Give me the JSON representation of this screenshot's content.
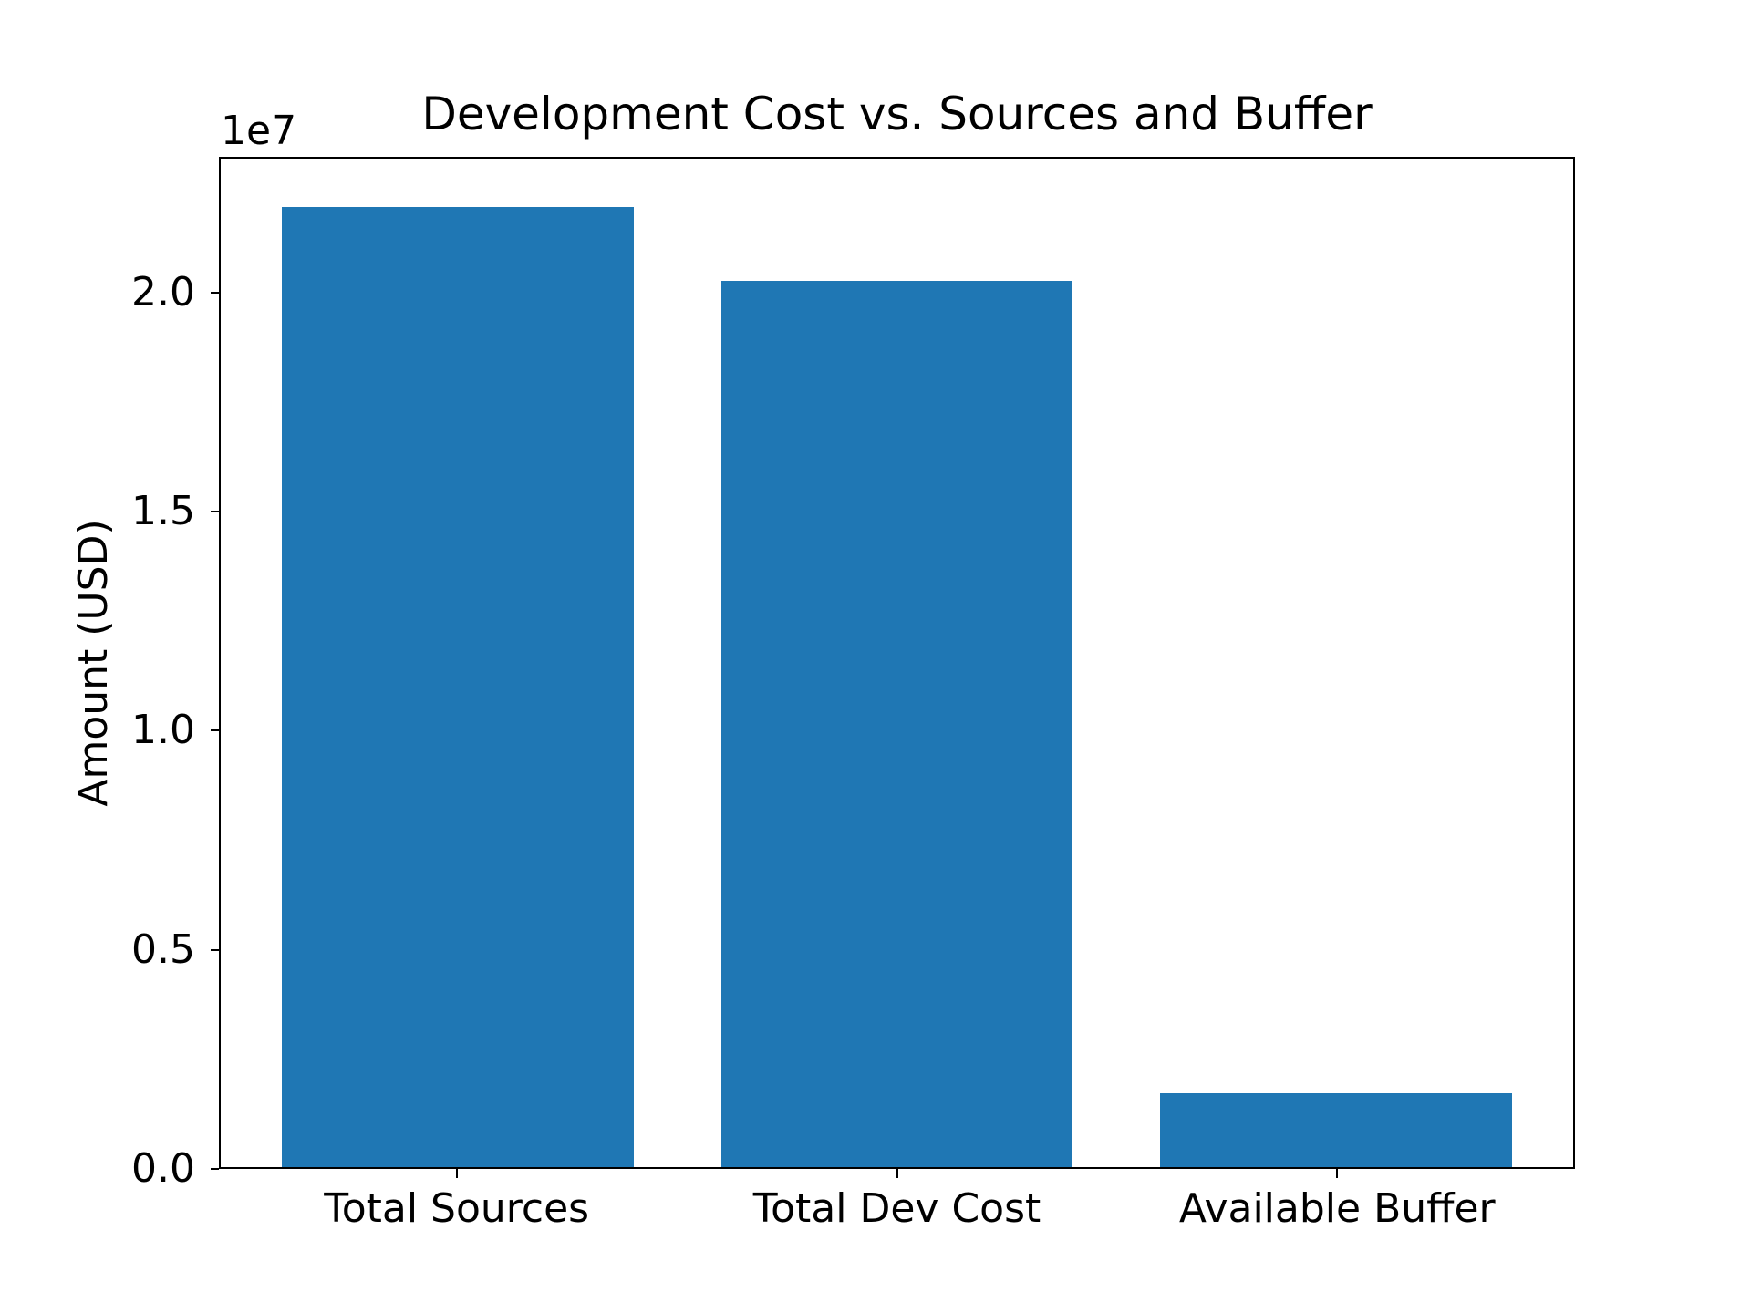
{
  "chart_data": {
    "type": "bar",
    "title": "Development Cost vs. Sources and Buffer",
    "xlabel": "",
    "ylabel": "Amount (USD)",
    "offset_text": "1e7",
    "categories": [
      "Total Sources",
      "Total Dev Cost",
      "Available Buffer"
    ],
    "values": [
      22000000,
      20300000,
      1700000
    ],
    "ylim": [
      0,
      23100000
    ],
    "ytick_values": [
      0,
      5000000,
      10000000,
      15000000,
      20000000
    ],
    "ytick_labels": [
      "0.0",
      "0.5",
      "1.0",
      "1.5",
      "2.0"
    ],
    "bar_color": "#1f77b4",
    "axis_color": "#000000",
    "background_color": "#ffffff",
    "grid": false,
    "legend": null
  }
}
